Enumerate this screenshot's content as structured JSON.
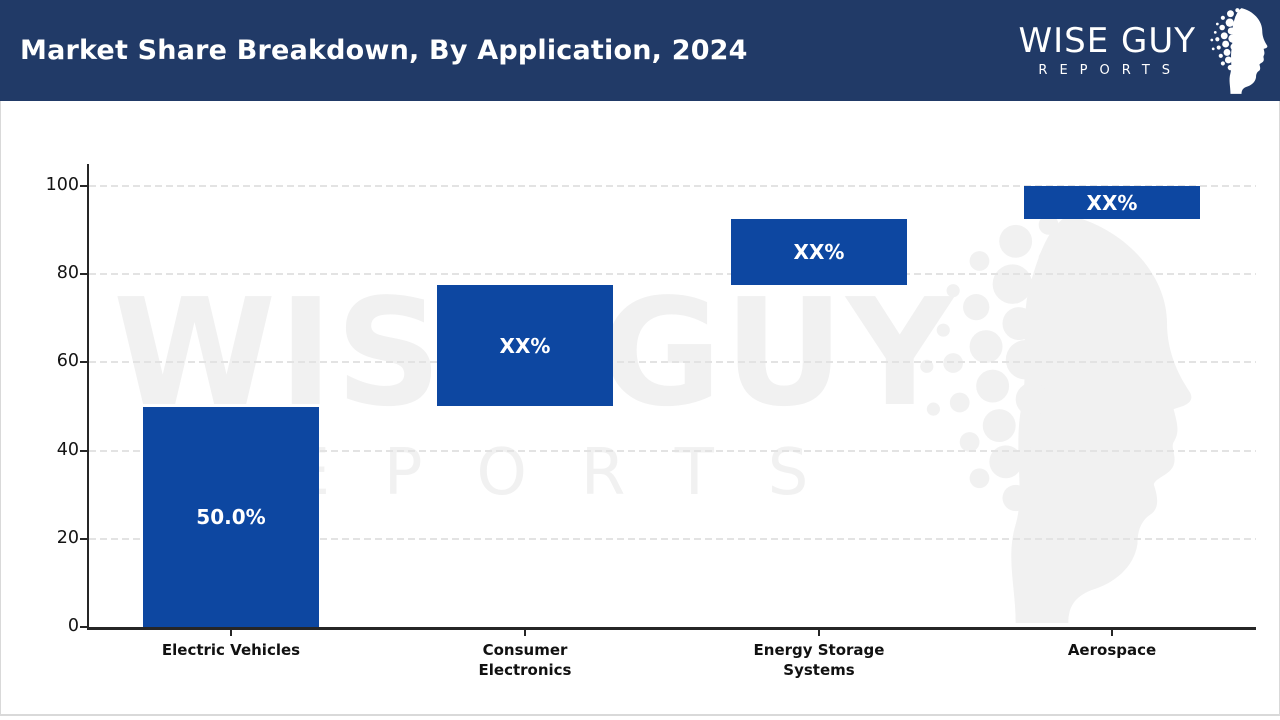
{
  "header": {
    "title": "Market Share Breakdown, By Application, 2024",
    "bg_color": "#213a67",
    "logo": {
      "brand_line1": "WISE GUY",
      "brand_line2": "REPORTS"
    }
  },
  "watermark": {
    "line1": "WISE GUY",
    "line2": "REPORTS"
  },
  "chart_data": {
    "type": "bar",
    "variant": "waterfall-stacked-percentage",
    "title": "Market Share Breakdown, By Application, 2024",
    "categories": [
      "Electric Vehicles",
      "Consumer\nElectronics",
      "Energy Storage\nSystems",
      "Aerospace"
    ],
    "segments": [
      {
        "category": "Electric Vehicles",
        "start": 0,
        "end": 50,
        "label": "50.0%"
      },
      {
        "category": "Consumer Electronics",
        "start": 50,
        "end": 77.5,
        "label": "XX%"
      },
      {
        "category": "Energy Storage Systems",
        "start": 77.5,
        "end": 92.5,
        "label": "XX%"
      },
      {
        "category": "Aerospace",
        "start": 92.5,
        "end": 100,
        "label": "XX%"
      }
    ],
    "xlabel": "",
    "ylabel": "",
    "ylim": [
      0,
      105
    ],
    "yticks": [
      0,
      20,
      40,
      60,
      80,
      100
    ],
    "grid": "horizontal-dashed",
    "legend": "none",
    "bar_color": "#0d47a1",
    "value_label_color": "#ffffff"
  }
}
